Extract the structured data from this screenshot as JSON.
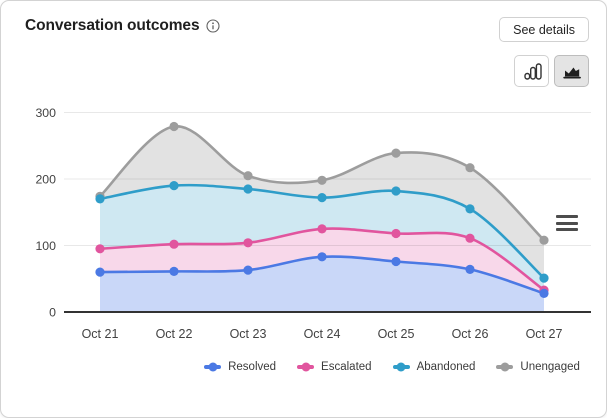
{
  "card": {
    "title": "Conversation outcomes",
    "see_details_label": "See details"
  },
  "chart_data": {
    "type": "area",
    "title": "Conversation outcomes",
    "categories": [
      "Oct 21",
      "Oct 22",
      "Oct 23",
      "Oct 24",
      "Oct 25",
      "Oct 26",
      "Oct 27"
    ],
    "series": [
      {
        "name": "Resolved",
        "color": "#4b79e4",
        "fill": "#c9d7f8",
        "values": [
          60,
          61,
          63,
          83,
          76,
          64,
          28
        ]
      },
      {
        "name": "Escalated",
        "color": "#e1559e",
        "fill": "#f8d8ea",
        "values": [
          95,
          102,
          104,
          125,
          118,
          111,
          33
        ]
      },
      {
        "name": "Abandoned",
        "color": "#2f9dc9",
        "fill": "#cfe8f2",
        "values": [
          170,
          190,
          185,
          172,
          182,
          155,
          51
        ]
      },
      {
        "name": "Unengaged",
        "color": "#9d9d9d",
        "fill": "#e2e2e2",
        "values": [
          174,
          279,
          205,
          198,
          239,
          217,
          108
        ]
      }
    ],
    "ylim": [
      0,
      300
    ],
    "yticks": [
      0,
      100,
      200,
      300
    ],
    "grid": true,
    "legend_position": "bottom"
  }
}
